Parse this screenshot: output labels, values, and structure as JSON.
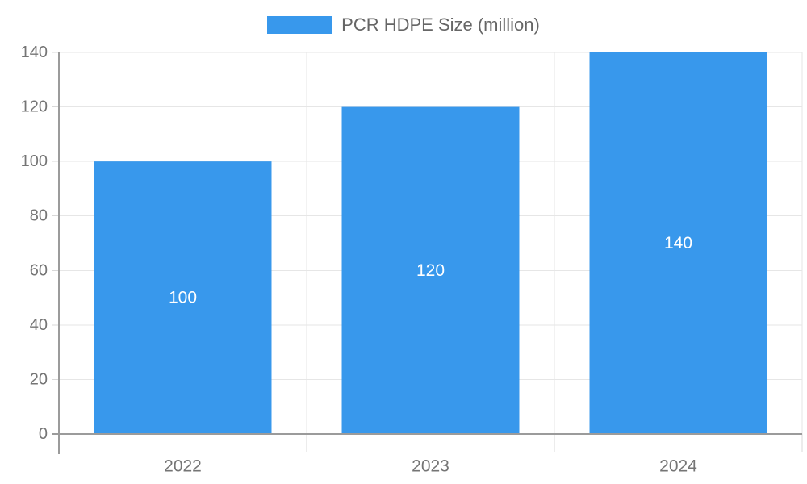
{
  "chart_data": {
    "type": "bar",
    "title": "",
    "xlabel": "",
    "ylabel": "",
    "categories": [
      "2022",
      "2023",
      "2024"
    ],
    "series": [
      {
        "name": "PCR HDPE Size (million)",
        "values": [
          100,
          120,
          140
        ]
      }
    ],
    "data_labels": [
      "100",
      "120",
      "140"
    ],
    "yticks": [
      0,
      20,
      40,
      60,
      80,
      100,
      120,
      140
    ],
    "ytick_labels": [
      "0",
      "20",
      "40",
      "60",
      "80",
      "100",
      "120",
      "140"
    ],
    "ylim": [
      0,
      140
    ],
    "grid": true,
    "legend_position": "top",
    "colors": {
      "bar": "#3898EC",
      "grid": "#E6E6E6",
      "axis": "#9B9B9B",
      "tick": "#D8D8D8",
      "axis_label": "#757575",
      "data_label": "#FFFFFF",
      "legend_text": "#666666"
    }
  }
}
